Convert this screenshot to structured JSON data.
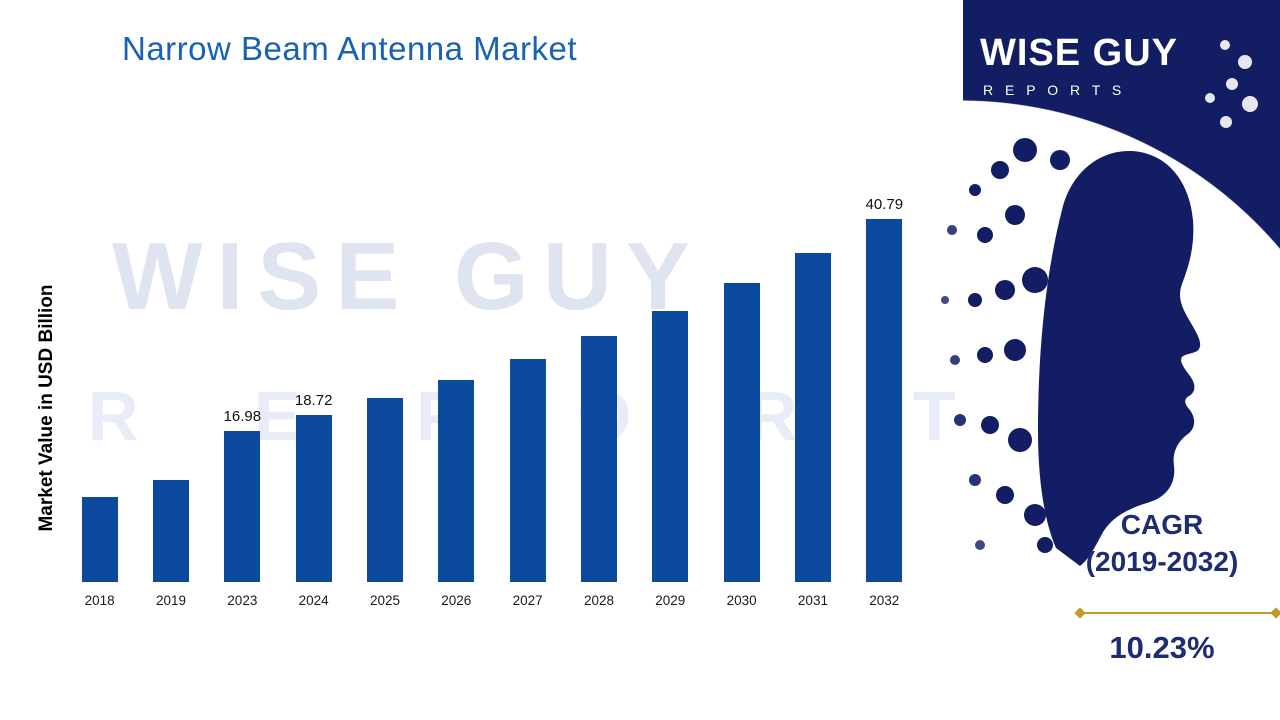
{
  "page": {
    "title": "Narrow Beam Antenna Market"
  },
  "logo": {
    "line1": "WISE GUY",
    "line2": "R E P O R T S"
  },
  "watermark": {
    "line1": "WISE GUY",
    "line2": "R E P O R T S"
  },
  "cagr": {
    "heading": "CAGR",
    "range": "(2019-2032)",
    "value": "10.23%"
  },
  "chart_data": {
    "type": "bar",
    "title": "Narrow Beam Antenna Market",
    "ylabel": "Market Value in USD Billion",
    "unit": "USD Billion",
    "categories": [
      "2018",
      "2019",
      "2023",
      "2024",
      "2025",
      "2026",
      "2027",
      "2028",
      "2029",
      "2030",
      "2031",
      "2032"
    ],
    "values": [
      9.5,
      11.5,
      16.98,
      18.72,
      20.64,
      22.75,
      25.08,
      27.64,
      30.47,
      33.59,
      37.02,
      40.79
    ],
    "data_labels": {
      "2023": "16.98",
      "2024": "18.72",
      "2032": "40.79"
    },
    "ylim": [
      0,
      42
    ],
    "bar_color": "#0b4a9e",
    "grid": false,
    "legend": false
  },
  "colors": {
    "title": "#1961b4",
    "panel_navy": "#121d63",
    "bar": "#0b4a9e",
    "cagr_text": "#1e2c72",
    "gold": "#c19a2b",
    "watermark": "#c6cee6"
  }
}
